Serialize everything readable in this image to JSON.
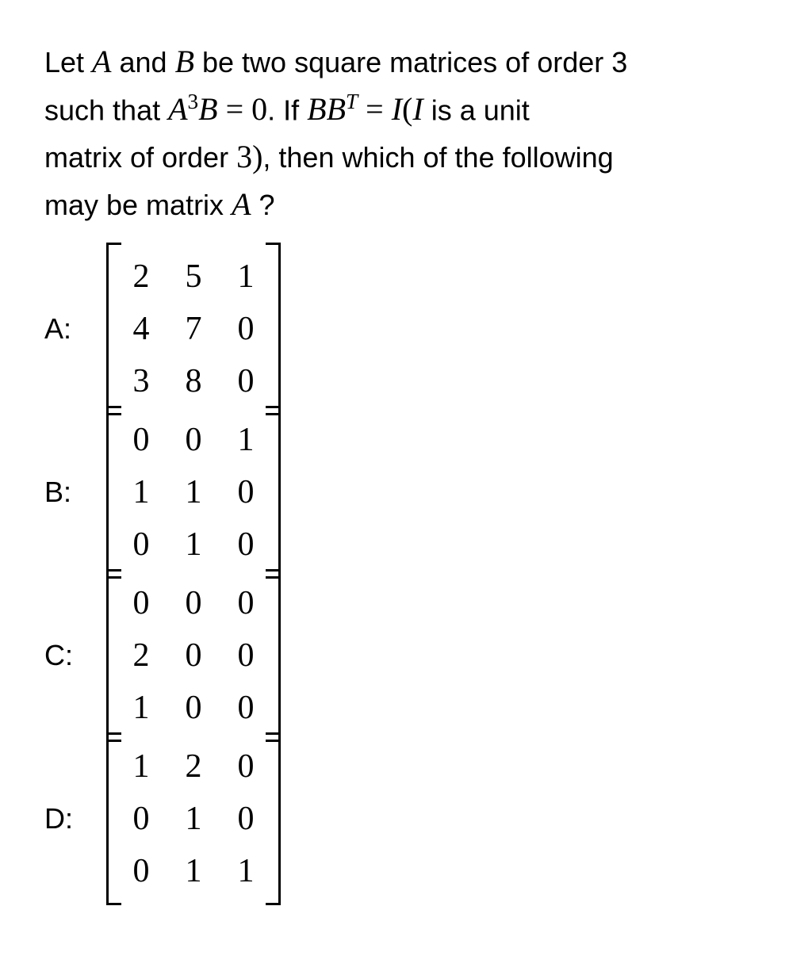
{
  "question": {
    "line1_pre": "Let ",
    "line1_A": "A",
    "line1_and": " and ",
    "line1_B": "B",
    "line1_post": " be two square matrices of order 3",
    "line2_pre": "such that ",
    "line2_expr1_A": "A",
    "line2_expr1_exp": "3",
    "line2_expr1_B": "B",
    "line2_expr1_eq": " = 0",
    "line2_mid": ". If ",
    "line2_expr2_BBT": "BB",
    "line2_expr2_T": "T",
    "line2_expr2_eq": " = ",
    "line2_expr2_I": "I",
    "line2_expr2_paren": "(",
    "line2_expr2_I2": "I",
    "line2_post": " is a unit",
    "line3_pre": "matrix of order ",
    "line3_num": "3",
    "line3_paren": ")",
    "line3_post": ", then which of the following",
    "line4_pre": "may be matrix ",
    "line4_A": "A",
    "line4_post": " ?"
  },
  "options": [
    {
      "label": "A:",
      "matrix": [
        [
          "2",
          "5",
          "1"
        ],
        [
          "4",
          "7",
          "0"
        ],
        [
          "3",
          "8",
          "0"
        ]
      ]
    },
    {
      "label": "B:",
      "matrix": [
        [
          "0",
          "0",
          "1"
        ],
        [
          "1",
          "1",
          "0"
        ],
        [
          "0",
          "1",
          "0"
        ]
      ]
    },
    {
      "label": "C:",
      "matrix": [
        [
          "0",
          "0",
          "0"
        ],
        [
          "2",
          "0",
          "0"
        ],
        [
          "1",
          "0",
          "0"
        ]
      ]
    },
    {
      "label": "D:",
      "matrix": [
        [
          "1",
          "2",
          "0"
        ],
        [
          "0",
          "1",
          "0"
        ],
        [
          "0",
          "1",
          "1"
        ]
      ]
    }
  ],
  "styling": {
    "background_color": "#ffffff",
    "text_color": "#000000",
    "question_fontsize": 36,
    "matrix_cell_fontsize": 42,
    "option_label_fontsize": 36,
    "math_fontsize": 40
  }
}
